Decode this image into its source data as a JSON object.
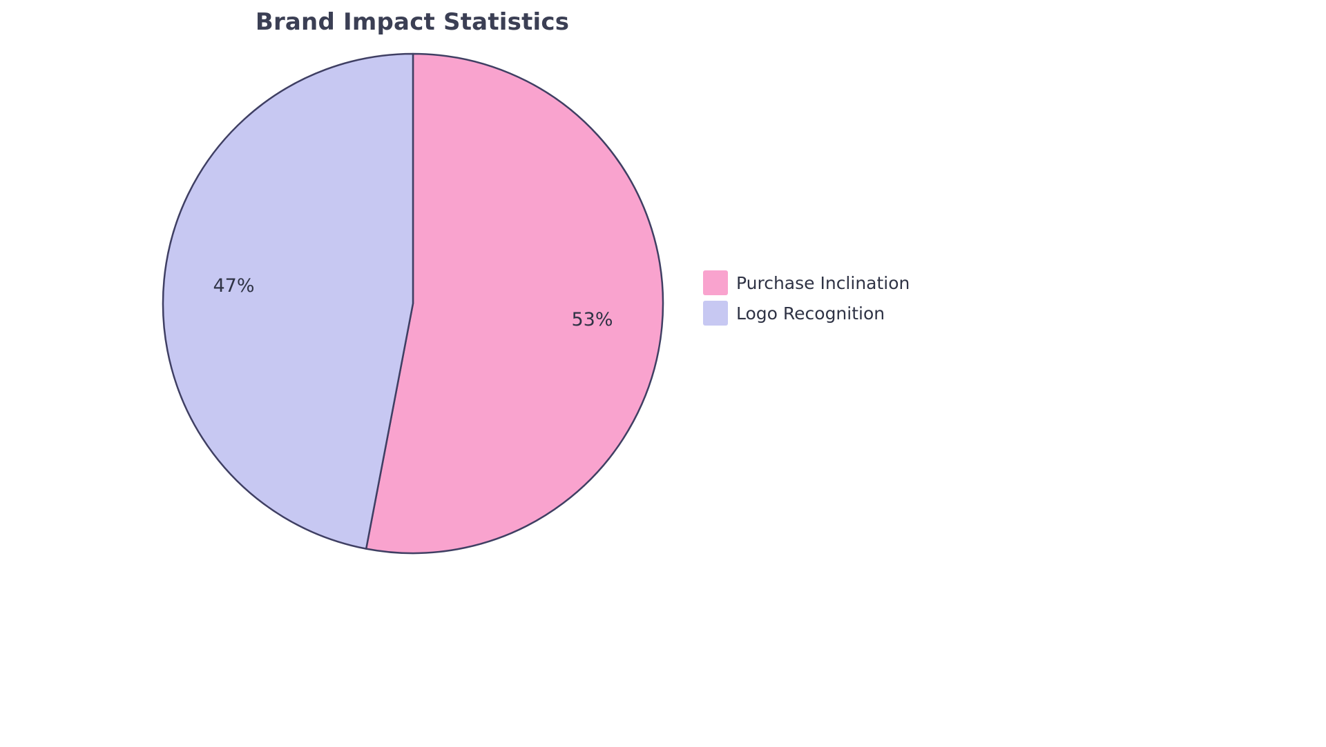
{
  "chart_data": {
    "type": "pie",
    "title": "Brand Impact Statistics",
    "slices": [
      {
        "label": "Purchase Inclination",
        "value": 53,
        "display": "53%",
        "color": "#f9a3ce"
      },
      {
        "label": "Logo Recognition",
        "value": 47,
        "display": "47%",
        "color": "#c7c8f2"
      }
    ],
    "start_angle": "top",
    "direction": "clockwise",
    "legend_position": "right",
    "stroke_color": "#3f3f63",
    "background_color": "#ffffff"
  }
}
